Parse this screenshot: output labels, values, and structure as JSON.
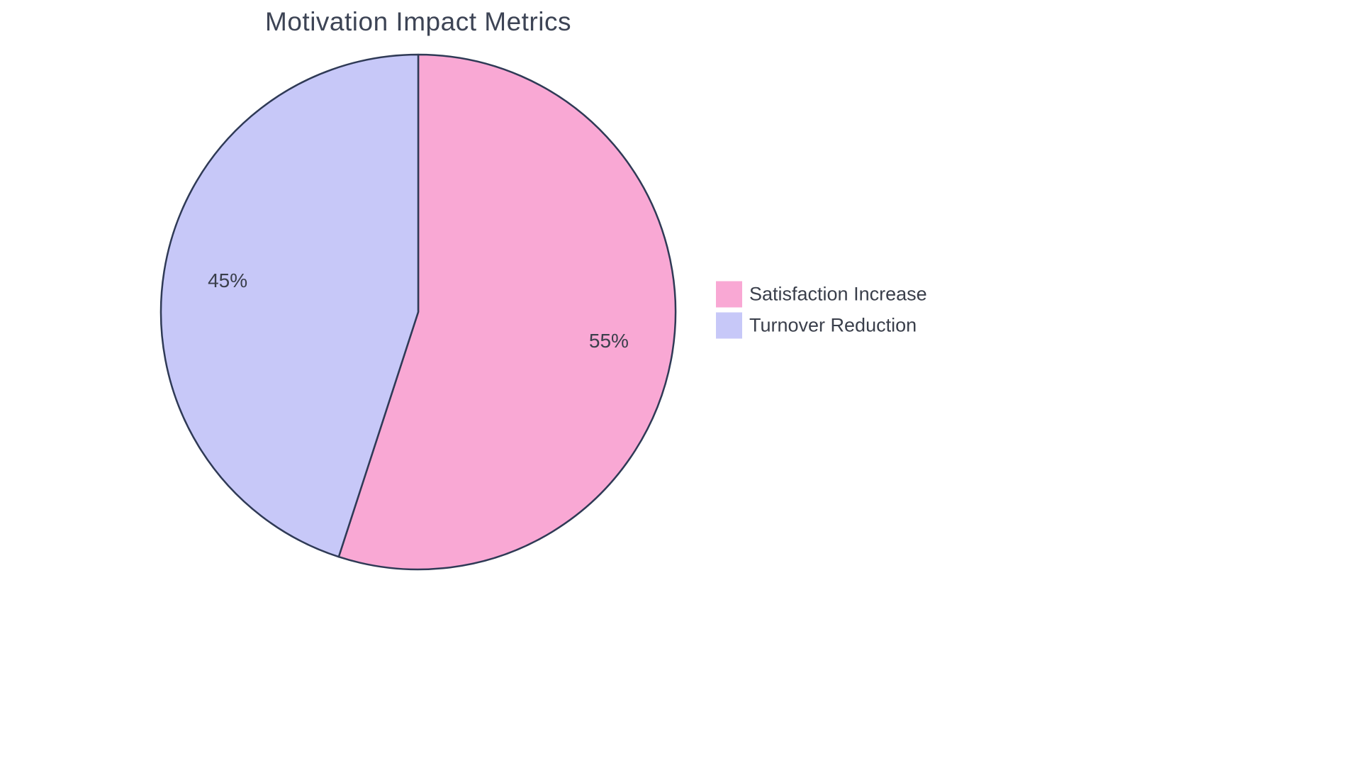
{
  "page": {
    "background": "#ffffff",
    "title_color": "#3d4455",
    "label_color": "#3a3f4b"
  },
  "chart_data": {
    "type": "pie",
    "title": "Motivation Impact Metrics",
    "labels": [
      "Satisfaction Increase",
      "Turnover Reduction"
    ],
    "values": [
      55,
      45
    ],
    "value_labels": [
      "55%",
      "45%"
    ],
    "colors": [
      "#F9A8D4",
      "#C7C8F8"
    ],
    "stroke_color": "#2f3a56",
    "legend_position": "right",
    "start_angle_deg": 0,
    "direction": "clockwise"
  }
}
